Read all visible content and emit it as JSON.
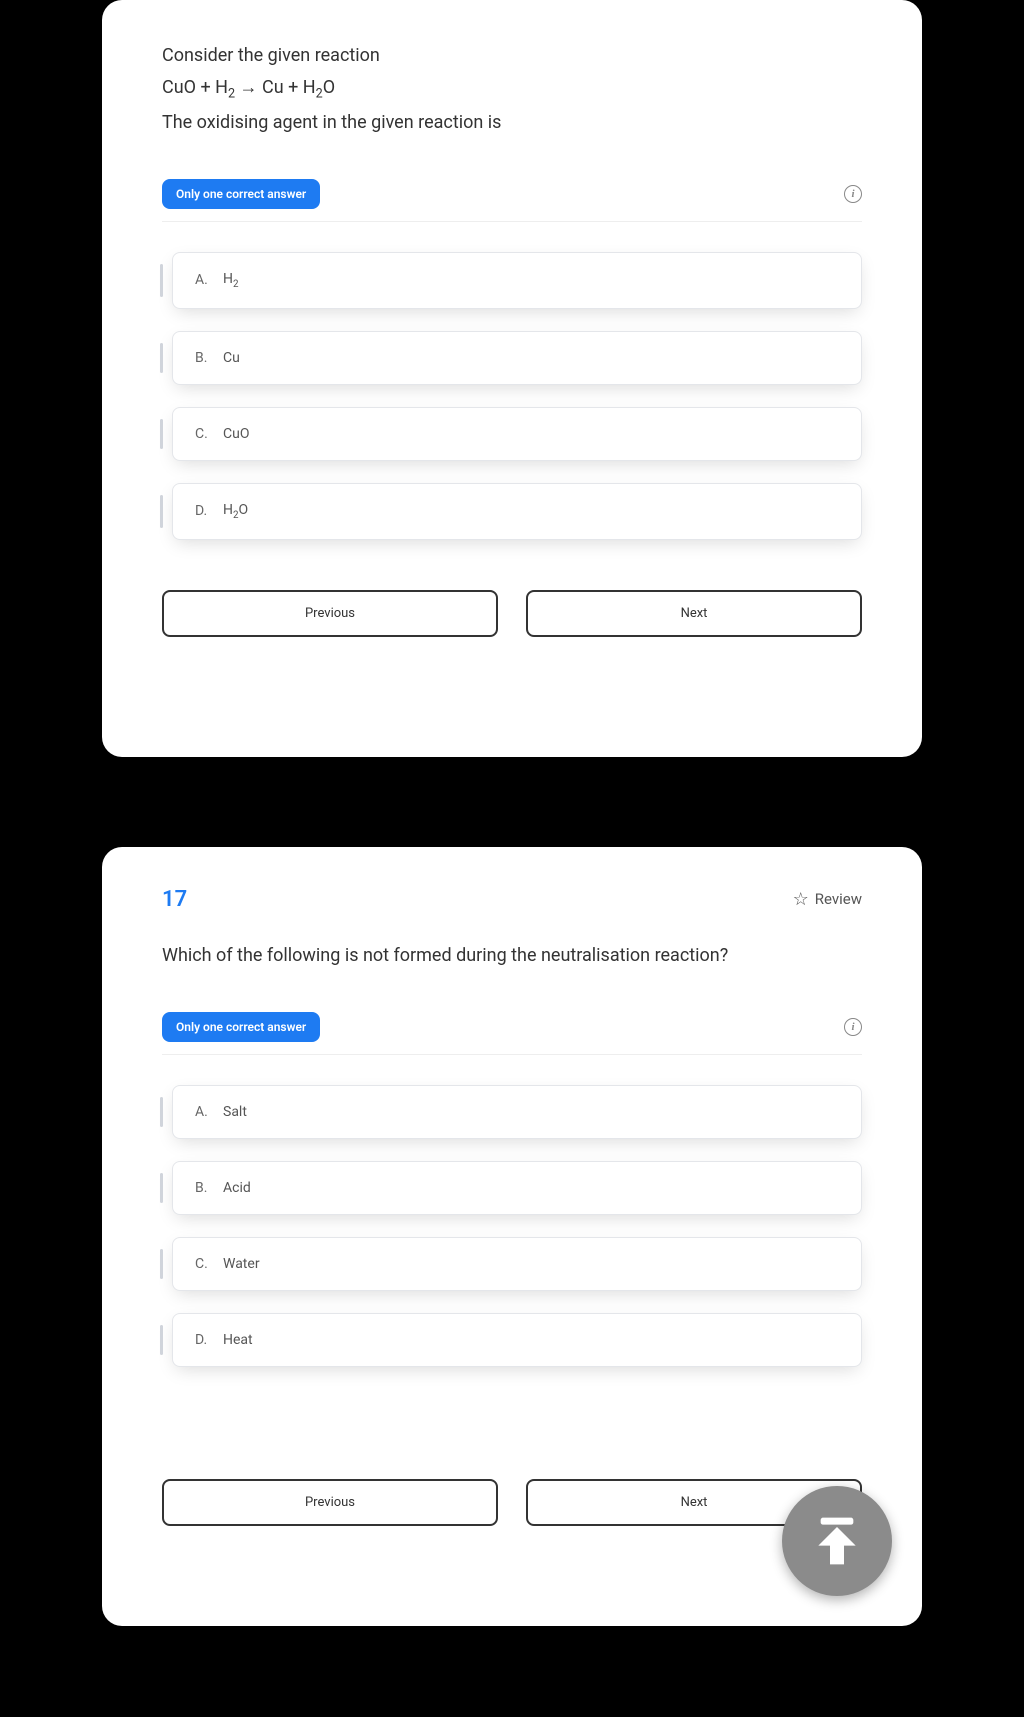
{
  "q1": {
    "text_line1": "Consider the given reaction",
    "text_line2_html": "CuO + H<sub class='sub'>2</sub> → Cu + H<sub class='sub'>2</sub>O",
    "text_line3": "The oxidising agent in the given reaction is",
    "badge": "Only one correct answer",
    "options": [
      {
        "letter": "A.",
        "html": "H<sub class='sub'>2</sub>"
      },
      {
        "letter": "B.",
        "html": "Cu"
      },
      {
        "letter": "C.",
        "html": "CuO"
      },
      {
        "letter": "D.",
        "html": "H<sub class='sub'>2</sub>O"
      }
    ],
    "prev": "Previous",
    "next": "Next"
  },
  "q2": {
    "number": "17",
    "review": "Review",
    "text": "Which of the following is not formed during the neutralisation reaction?",
    "badge": "Only one correct answer",
    "options": [
      {
        "letter": "A.",
        "html": "Salt"
      },
      {
        "letter": "B.",
        "html": "Acid"
      },
      {
        "letter": "C.",
        "html": "Water"
      },
      {
        "letter": "D.",
        "html": "Heat"
      }
    ],
    "prev": "Previous",
    "next": "Next"
  },
  "colors": {
    "accent": "#1e7bf2",
    "card_border": "#e4e6ea",
    "bg": "#ffffff",
    "page_bg": "#000000",
    "fab_bg": "#8b8b8b"
  }
}
